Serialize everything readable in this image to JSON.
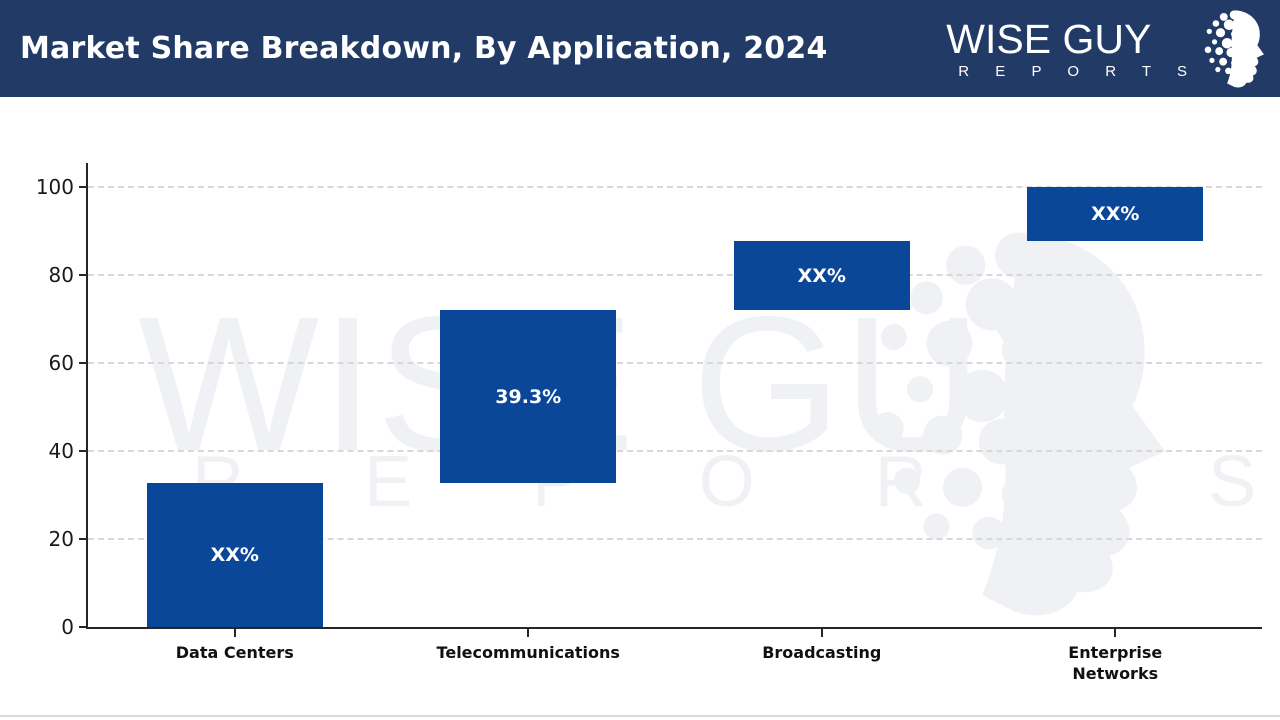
{
  "header": {
    "title": "Market Share Breakdown, By Application, 2024",
    "bg_color": "#213a66",
    "logo": {
      "line1": "WISE GUY",
      "line2": "R E P O R T S"
    }
  },
  "watermark": {
    "line1": "WISE GUY",
    "line2": "R E P O R T S"
  },
  "chart_data": {
    "type": "bar",
    "subtype": "floating-waterfall",
    "title": "Market Share Breakdown, By Application, 2024",
    "categories": [
      "Data Centers",
      "Telecommunications",
      "Broadcasting",
      "Enterprise\nNetworks"
    ],
    "bars": [
      {
        "category": "Data Centers",
        "start": 0,
        "end": 32.7,
        "label": "XX%"
      },
      {
        "category": "Telecommunications",
        "start": 32.7,
        "end": 72.0,
        "label": "39.3%"
      },
      {
        "category": "Broadcasting",
        "start": 72.0,
        "end": 87.7,
        "label": "XX%"
      },
      {
        "category": "Enterprise Networks",
        "start": 87.7,
        "end": 100,
        "label": "XX%"
      }
    ],
    "yticks": [
      0,
      20,
      40,
      60,
      80,
      100
    ],
    "ylim": [
      0,
      100
    ],
    "xlabel": "",
    "ylabel": "",
    "grid": "dashed-horizontal",
    "legend": "none",
    "bar_color": "#0b4799",
    "bar_label_color": "#ffffff",
    "axis_color": "#262626",
    "grid_color": "#d8d8d8"
  }
}
